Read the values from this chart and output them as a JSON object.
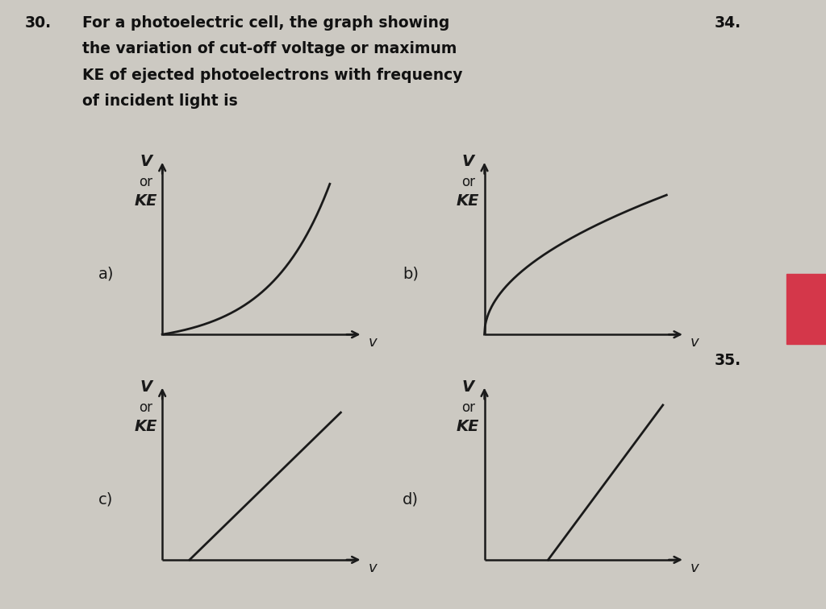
{
  "bg_color": "#ccc9c2",
  "axes_color": "#1a1a1a",
  "curve_color": "#1a1a1a",
  "label_a": "a)",
  "label_b": "b)",
  "label_c": "c)",
  "label_d": "d)",
  "ylabel_text": [
    "V",
    "or",
    "KE"
  ],
  "xlabel_text": "v",
  "title_fontsize": 13.5,
  "label_fontsize": 14,
  "axis_label_fontsize": 13,
  "num30": "30.",
  "num34": "34.",
  "num35": "35.",
  "line1": "For a photoelectric cell, the graph showing",
  "line2": "the variation of cut-off voltage or maximum",
  "line3": "KE of ejected photoelectrons with frequency",
  "line4": "of incident light is",
  "pink_color": "#d4374a",
  "text_color": "#111111"
}
